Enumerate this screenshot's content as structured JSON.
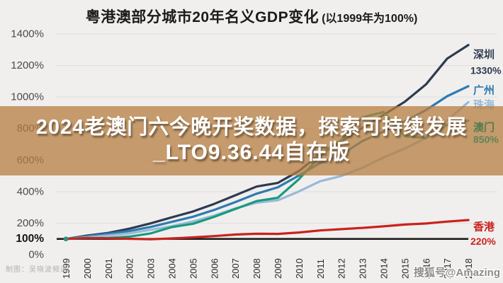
{
  "title": {
    "main": "粤港澳部分城市20年名义GDP变化",
    "subtitle": "(以1999年为100%)"
  },
  "overlay": {
    "line1": "2024老澳门六今晚开奖数据，探索可持续发展",
    "line2": "_LTO9.36.44自在版",
    "band_color": "#b67e40"
  },
  "footer": {
    "credit": "制图：吴晓波频道"
  },
  "watermark": "搜狐号@Amazing",
  "chart_data": {
    "type": "line",
    "title": "粤港澳部分城市20年名义GDP变化",
    "subtitle": "(以1999年为100%)",
    "xlabel": "",
    "ylabel": "",
    "ylim": [
      0,
      1400
    ],
    "grid": "horizontal",
    "legend_position": "right-end-labels",
    "x": [
      1999,
      2000,
      2001,
      2002,
      2003,
      2004,
      2005,
      2006,
      2007,
      2008,
      2009,
      2010,
      2011,
      2012,
      2013,
      2014,
      2015,
      2016,
      2017,
      2018
    ],
    "ytick_values": [
      1400,
      1200,
      1000,
      800,
      600,
      400,
      200,
      100,
      0
    ],
    "ytick_labels": [
      "1400%",
      "1200%",
      "1000%",
      "800%",
      "600%",
      "400%",
      "200%",
      "100%",
      "0%"
    ],
    "baseline": {
      "value": 100,
      "label": "100%"
    },
    "series": [
      {
        "id": "shenzhen",
        "name": "深圳",
        "color": "#2e3b4e",
        "end_label": "深圳",
        "end_value": "1330%",
        "values": [
          100,
          121,
          138,
          165,
          199,
          237,
          274,
          322,
          377,
          432,
          455,
          531,
          638,
          718,
          804,
          887,
          970,
          1080,
          1244,
          1330
        ]
      },
      {
        "id": "guangzhou",
        "name": "广州",
        "color": "#2e7bb0",
        "end_label": "广州",
        "end_value": "",
        "values": [
          100,
          117,
          133,
          150,
          176,
          208,
          241,
          284,
          334,
          387,
          427,
          502,
          581,
          634,
          721,
          781,
          846,
          917,
          1005,
          1069
        ]
      },
      {
        "id": "zhuhai",
        "name": "珠海",
        "color": "#97bad8",
        "end_label": "珠海",
        "end_value": "",
        "values": [
          100,
          110,
          122,
          135,
          158,
          181,
          211,
          248,
          294,
          330,
          345,
          401,
          466,
          499,
          552,
          617,
          673,
          740,
          852,
          968
        ]
      },
      {
        "id": "macau",
        "name": "澳门",
        "color": "#189a7d",
        "end_label": "澳门",
        "end_value": "850%",
        "label_over_overlay": true,
        "values": [
          100,
          104,
          106,
          115,
          135,
          175,
          196,
          240,
          290,
          340,
          361,
          479,
          624,
          727,
          871,
          905,
          752,
          740,
          824,
          850
        ]
      },
      {
        "id": "hongkong",
        "name": "香港",
        "color": "#c8231d",
        "end_label": "香港",
        "end_value": "220%",
        "values": [
          100,
          106,
          104,
          101,
          98,
          103,
          110,
          118,
          128,
          133,
          132,
          141,
          154,
          162,
          170,
          180,
          191,
          198,
          210,
          220
        ]
      }
    ]
  }
}
